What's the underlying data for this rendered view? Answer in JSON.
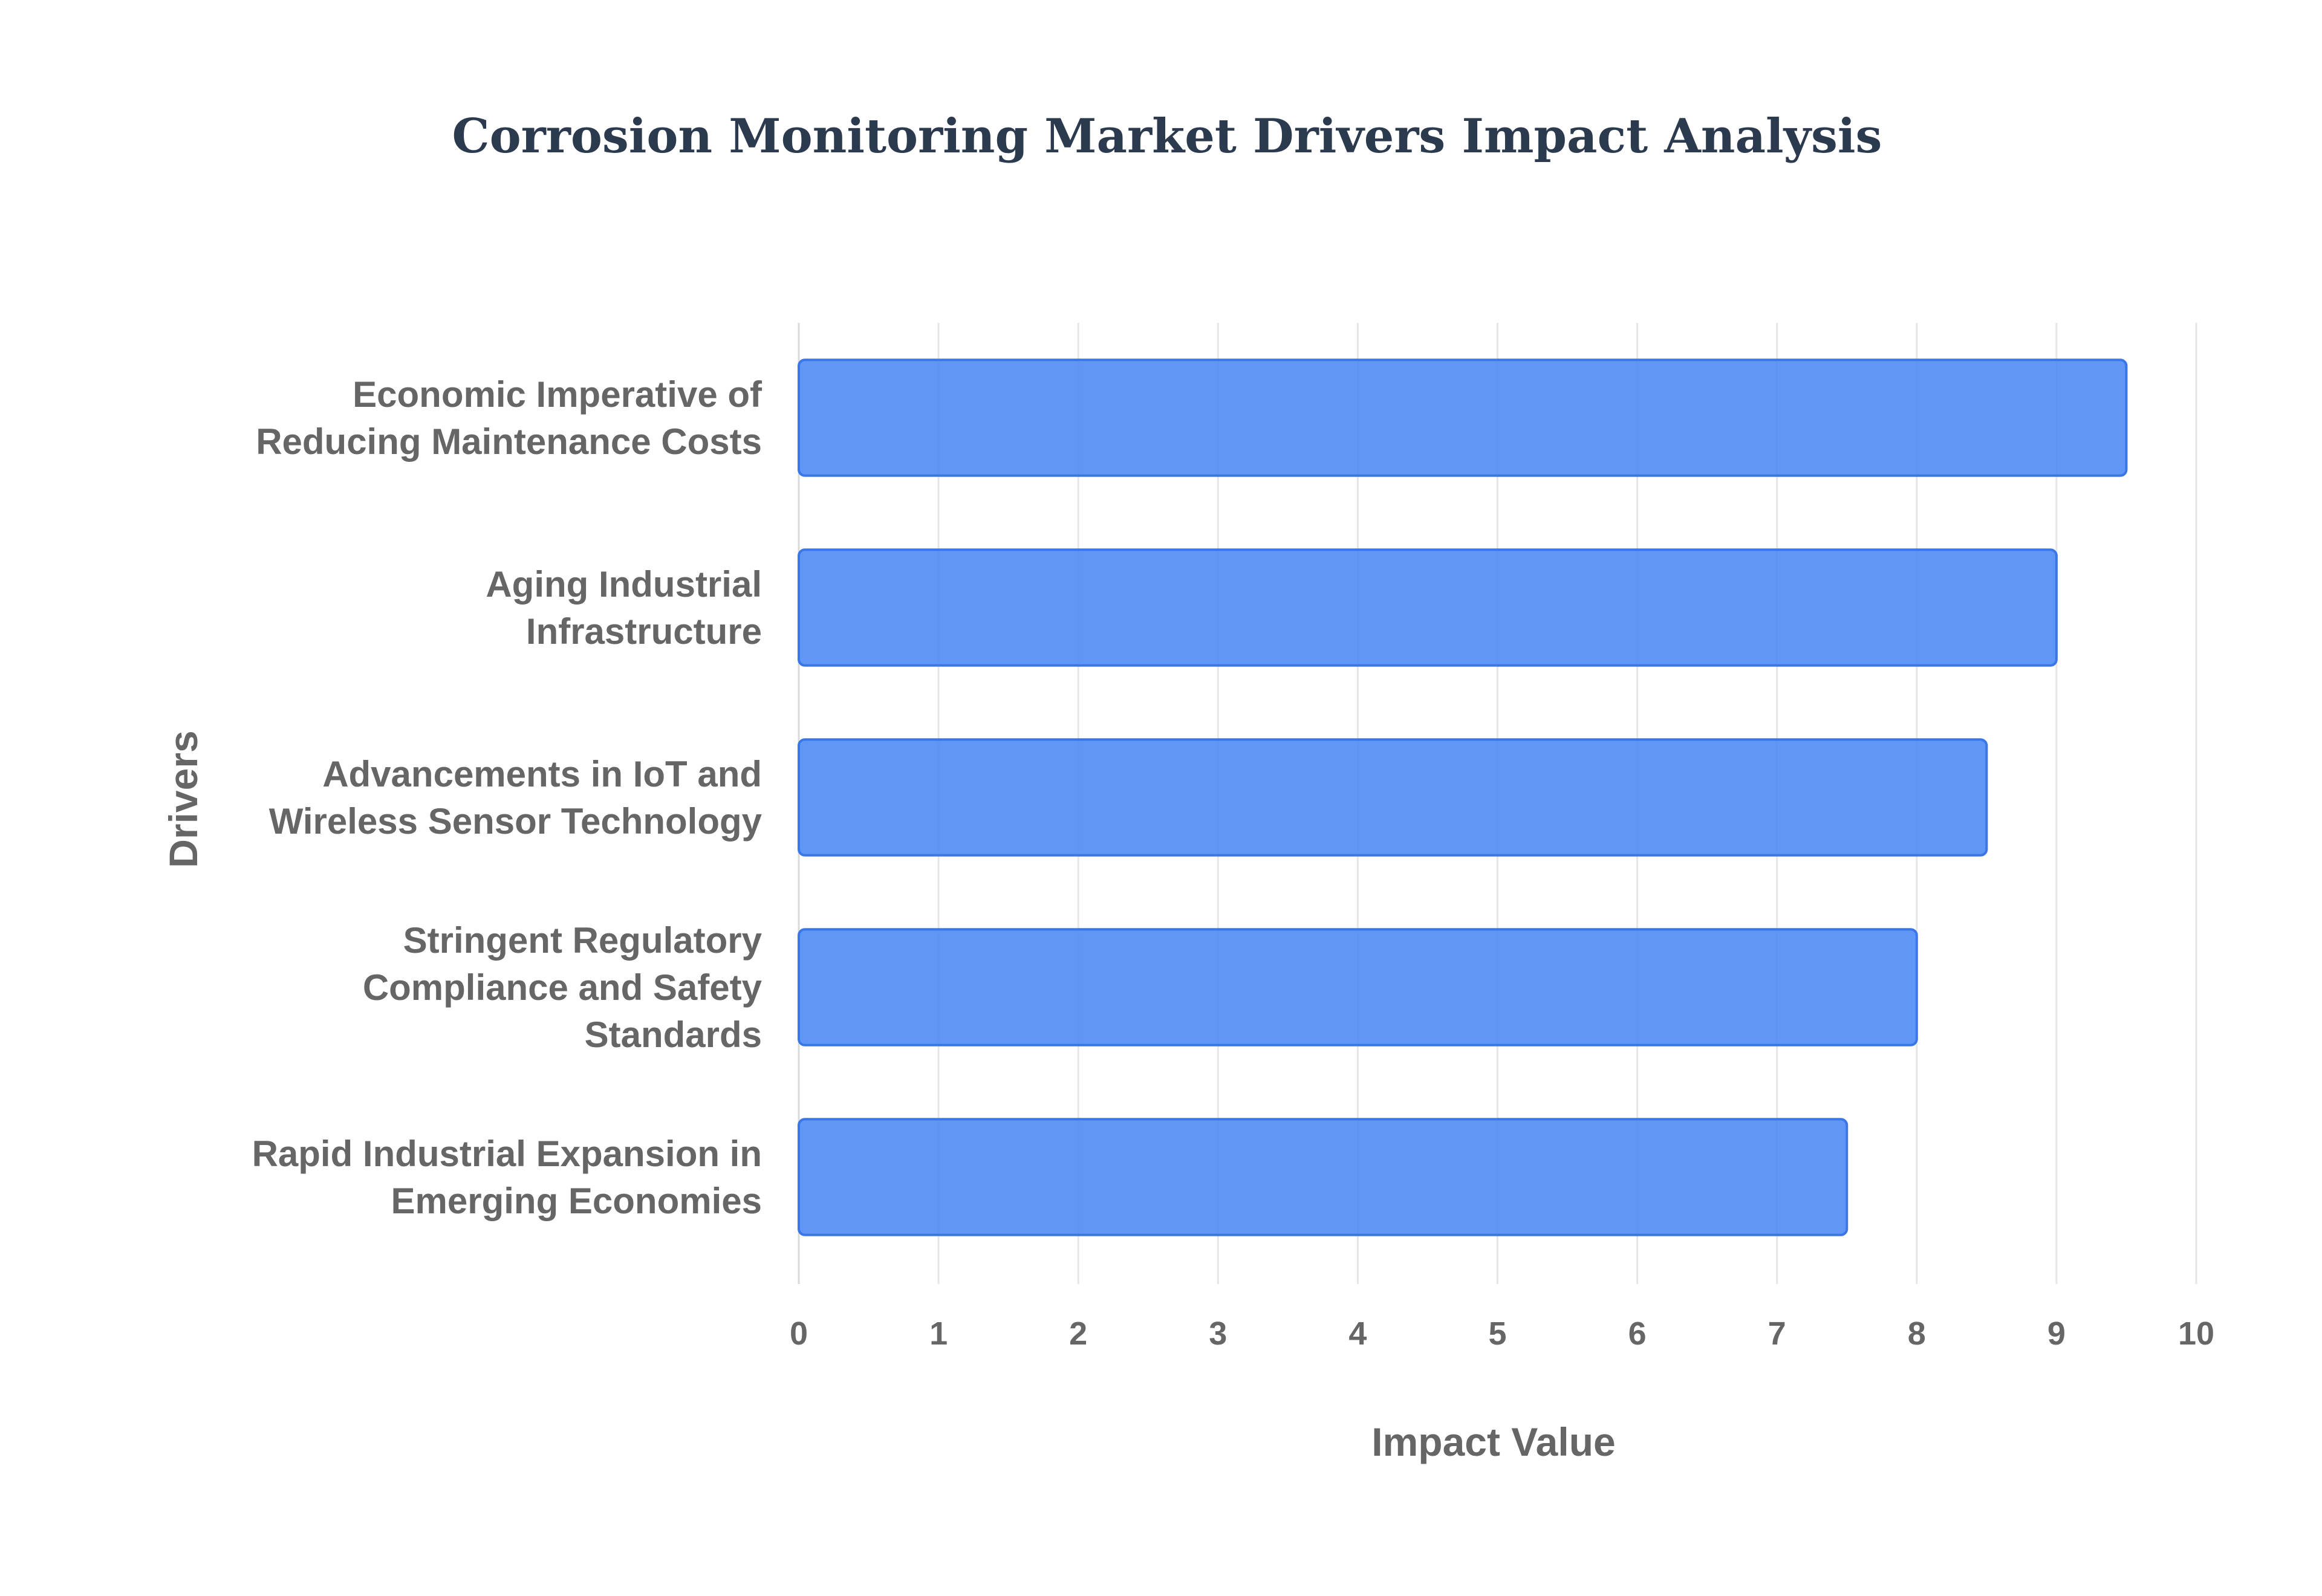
{
  "colors": {
    "bar_fill": "#4f8bf4",
    "bar_stroke": "#3a76e6",
    "title": "#2b3a4e",
    "label": "#666666",
    "grid": "#e6e6e6",
    "axis": "#d9d9d9"
  },
  "chart_data": {
    "type": "bar",
    "orientation": "horizontal",
    "title": "Corrosion Monitoring Market Drivers Impact Analysis",
    "xlabel": "Impact Value",
    "ylabel": "Drivers",
    "xlim": [
      0,
      10
    ],
    "xticks": [
      "0",
      "1",
      "2",
      "3",
      "4",
      "5",
      "6",
      "7",
      "8",
      "9",
      "10"
    ],
    "grid": true,
    "categories": [
      [
        "Economic Imperative of",
        "Reducing Maintenance Costs"
      ],
      [
        "Aging Industrial",
        "Infrastructure"
      ],
      [
        "Advancements in IoT and",
        "Wireless Sensor Technology"
      ],
      [
        "Stringent Regulatory",
        "Compliance and Safety",
        "Standards"
      ],
      [
        "Rapid Industrial Expansion in",
        "Emerging Economies"
      ]
    ],
    "values": [
      9.5,
      9,
      8.5,
      8,
      7.5
    ]
  }
}
